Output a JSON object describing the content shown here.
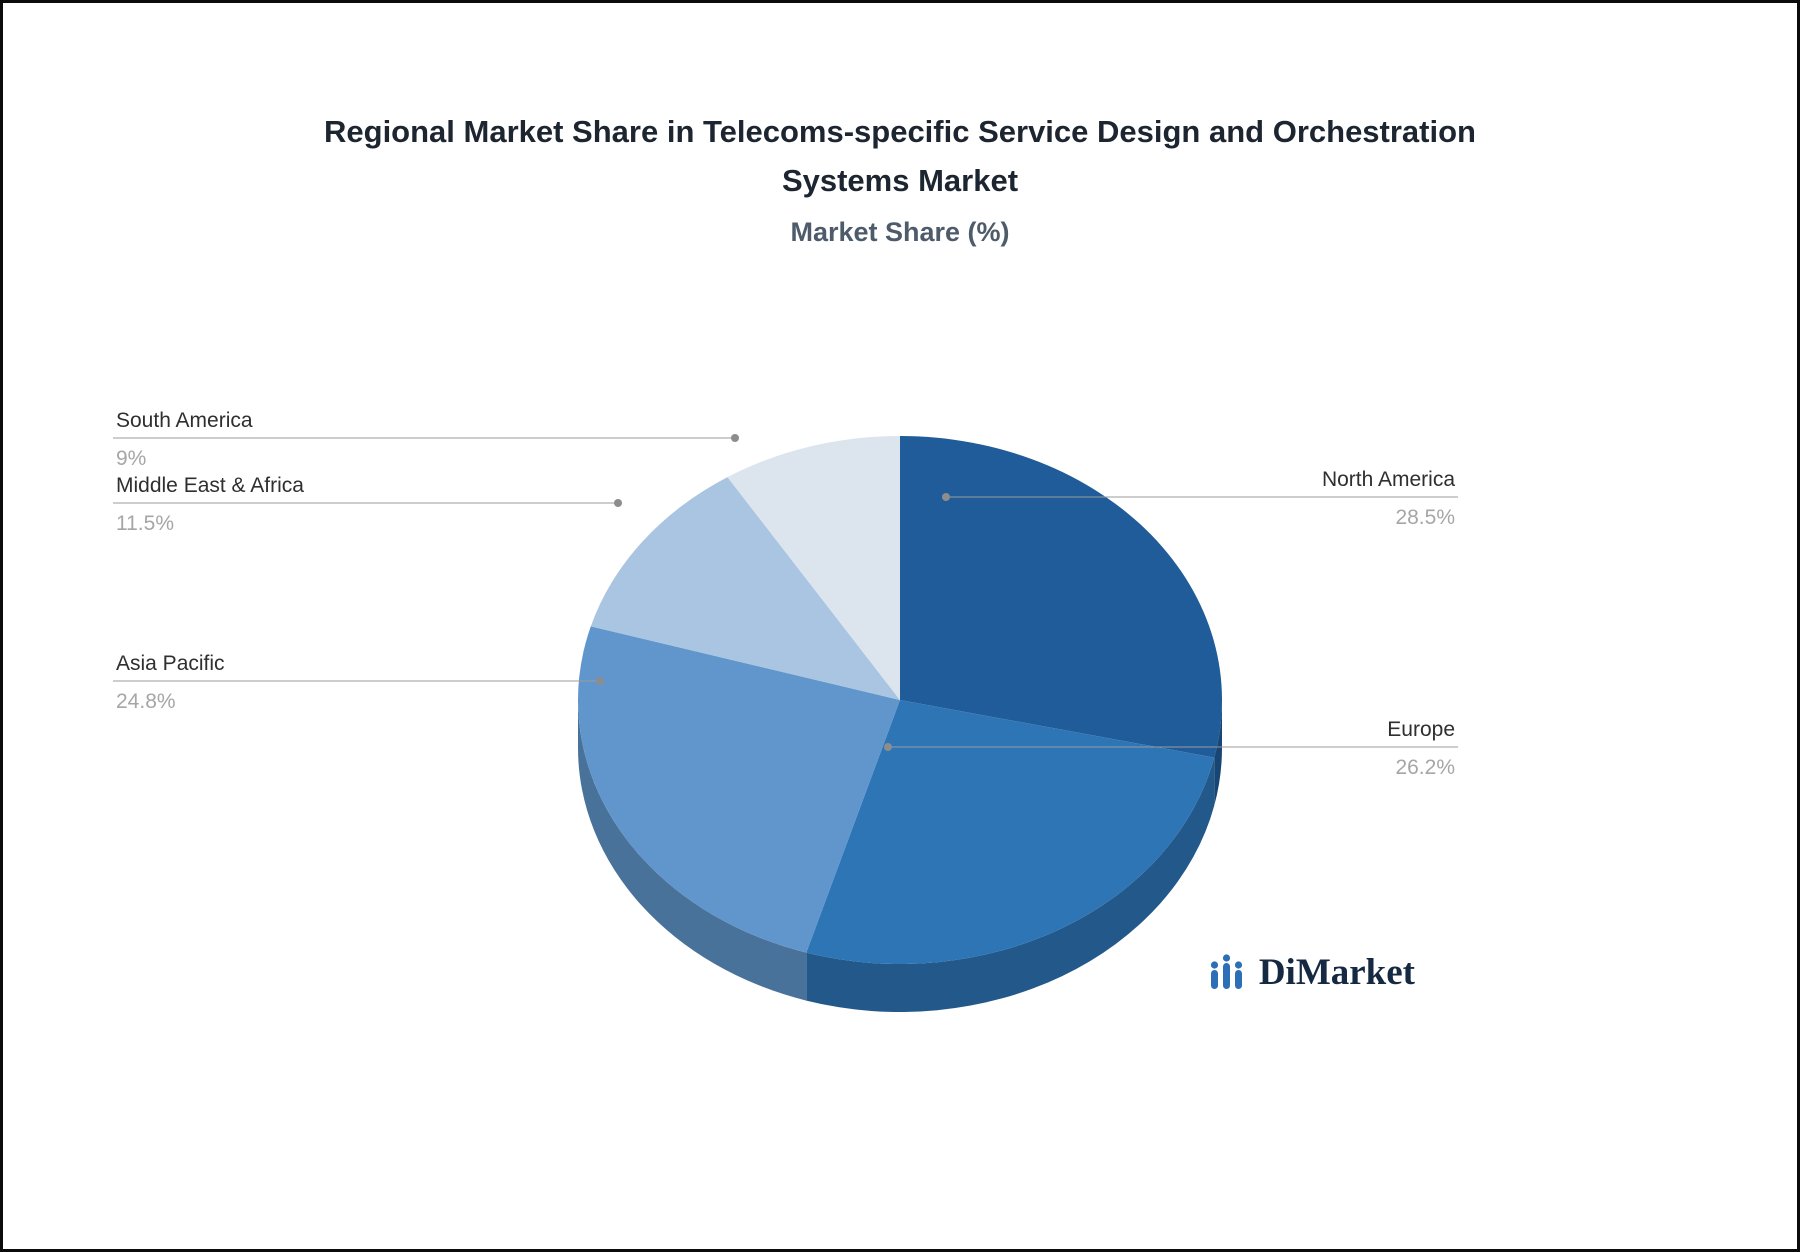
{
  "title_line1": "Regional Market Share in Telecoms-specific Service Design and Orchestration",
  "title_line2": "Systems Market",
  "subtitle": "Market Share (%)",
  "brand": {
    "name": "DiMarket",
    "icon": "bar-chart-icon",
    "icon_color": "#2D6FB7",
    "text_color": "#152A42"
  },
  "chart_data": {
    "type": "pie",
    "title": "Regional Market Share in Telecoms-specific Service Design and Orchestration Systems Market",
    "subtitle": "Market Share (%)",
    "unit": "%",
    "effect": "3d",
    "start_angle_deg": 0,
    "direction": "clockwise",
    "legend_position": "callout-labels",
    "slices": [
      {
        "label": "North America",
        "value": 28.5,
        "display": "28.5%",
        "color": "#1F5C99",
        "side": "right"
      },
      {
        "label": "Europe",
        "value": 26.2,
        "display": "26.2%",
        "color": "#2E75B6",
        "side": "right"
      },
      {
        "label": "Asia Pacific",
        "value": 24.8,
        "display": "24.8%",
        "color": "#6096CC",
        "side": "left"
      },
      {
        "label": "Middle East & Africa",
        "value": 11.5,
        "display": "11.5%",
        "color": "#A9C5E1",
        "side": "left"
      },
      {
        "label": "South America",
        "value": 9,
        "display": "9%",
        "color": "#DCE4EE",
        "side": "left"
      }
    ]
  }
}
